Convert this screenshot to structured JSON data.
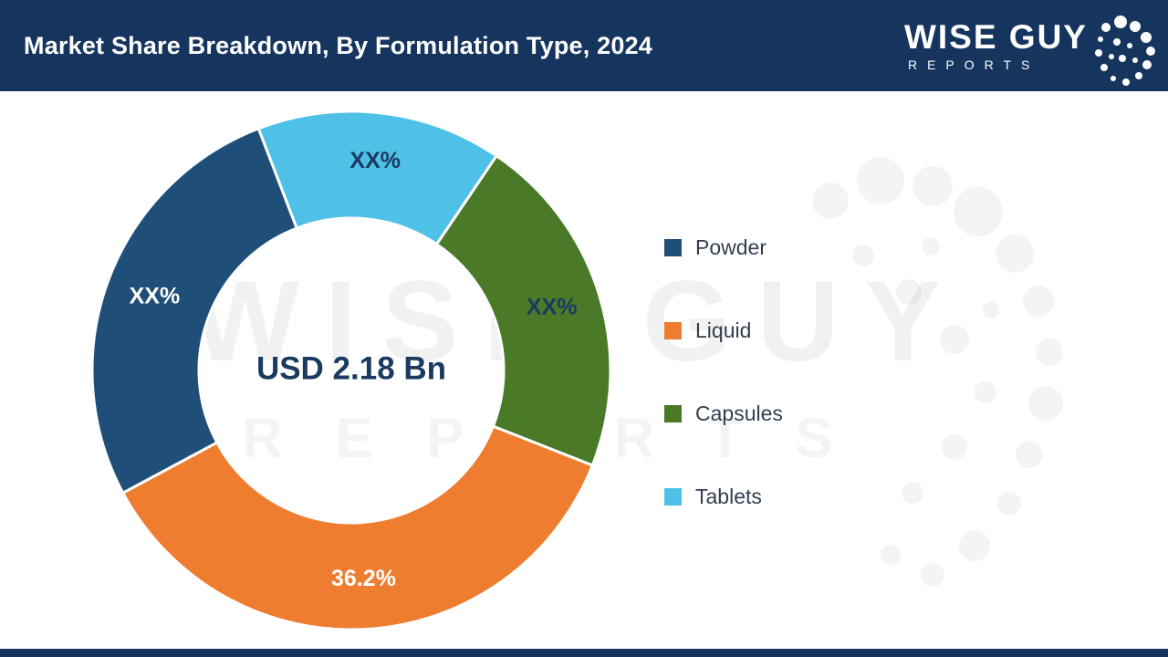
{
  "header": {
    "title": "Market Share Breakdown, By Formulation Type, 2024",
    "logo": {
      "line1": "WISE GUY",
      "line2": "REPORTS"
    }
  },
  "watermark": {
    "line1": "WISE GUY",
    "line2": "REPORTS"
  },
  "colors": {
    "header_bg": "#15355e",
    "footer_bg": "#15355e",
    "center_label_color": "#1a3a5f"
  },
  "chart_data": {
    "type": "pie",
    "subtype": "donut",
    "title": "Market Share Breakdown, By Formulation Type, 2024",
    "center_label": "USD 2.18 Bn",
    "start_angle_deg": -21,
    "legend_position": "right",
    "segments": [
      {
        "name": "Tablets",
        "value": 15.3,
        "label": "XX%",
        "color": "#4fc0e8",
        "label_color": "#1a3a5f"
      },
      {
        "name": "Capsules",
        "value": 21.5,
        "label": "XX%",
        "color": "#4a7a28",
        "label_color": "#1a3a5f"
      },
      {
        "name": "Liquid",
        "value": 36.2,
        "label": "36.2%",
        "color": "#ee7d30",
        "label_color": "#ffffff"
      },
      {
        "name": "Powder",
        "value": 27.0,
        "label": "XX%",
        "color": "#1f4e79",
        "label_color": "#ffffff"
      }
    ],
    "legend": [
      {
        "label": "Powder",
        "color": "#1f4e79"
      },
      {
        "label": "Liquid",
        "color": "#ee7d30"
      },
      {
        "label": "Capsules",
        "color": "#4a7a28"
      },
      {
        "label": "Tablets",
        "color": "#4fc0e8"
      }
    ]
  }
}
